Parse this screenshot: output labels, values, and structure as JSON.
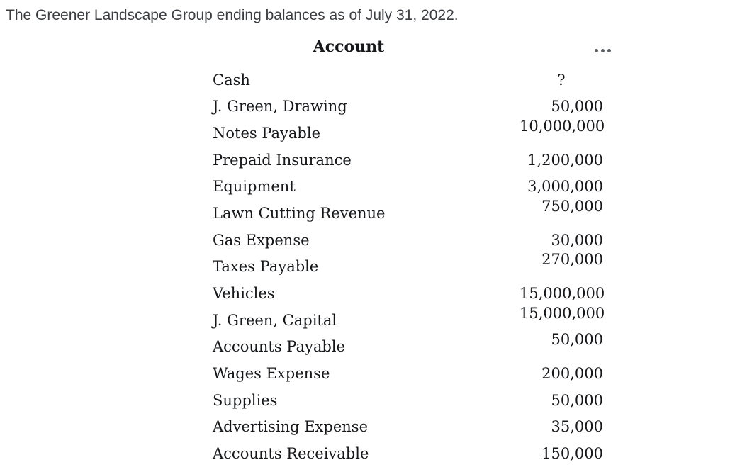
{
  "page": {
    "title": "The Greener Landscape Group ending balances as of July 31, 2022."
  },
  "table": {
    "header_label": "Account",
    "more_icon": "horizontal-ellipsis",
    "rows": [
      {
        "account": "Cash",
        "balance": "?"
      },
      {
        "account": "J. Green, Drawing",
        "balance": "50,000"
      },
      {
        "account": "Notes Payable",
        "balance": "10,000,000"
      },
      {
        "account": "Prepaid Insurance",
        "balance": "1,200,000"
      },
      {
        "account": "Equipment",
        "balance": "3,000,000"
      },
      {
        "account": "Lawn Cutting Revenue",
        "balance": "750,000"
      },
      {
        "account": "Gas Expense",
        "balance": "30,000"
      },
      {
        "account": "Taxes Payable",
        "balance": "270,000"
      },
      {
        "account": "Vehicles",
        "balance": "15,000,000"
      },
      {
        "account": "J. Green, Capital",
        "balance": "15,000,000"
      },
      {
        "account": "Accounts Payable",
        "balance": "50,000"
      },
      {
        "account": "Wages Expense",
        "balance": "200,000"
      },
      {
        "account": "Supplies",
        "balance": "50,000"
      },
      {
        "account": "Advertising Expense",
        "balance": "35,000"
      },
      {
        "account": "Accounts Receivable",
        "balance": "150,000"
      }
    ]
  },
  "colors": {
    "background": "#ffffff",
    "title_text": "#3a3d41",
    "table_text": "#15171a",
    "more_icon_dots": "#5d6166"
  }
}
